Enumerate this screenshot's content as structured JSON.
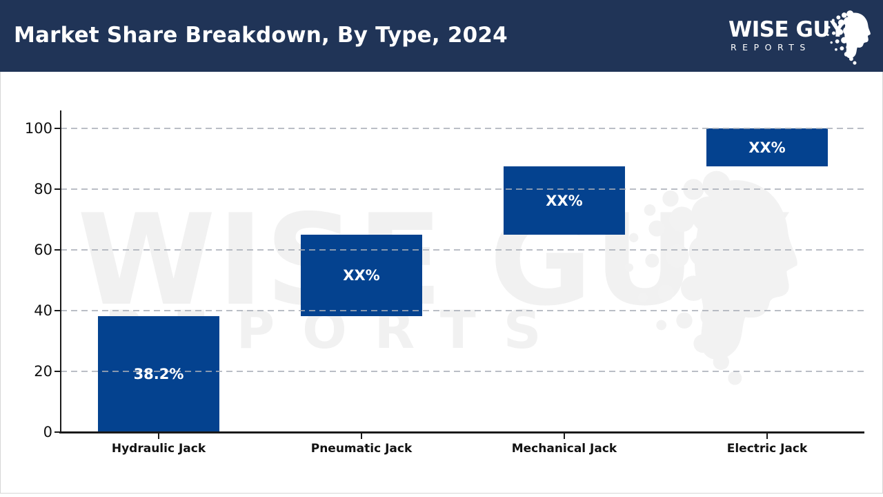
{
  "header": {
    "title": "Market Share Breakdown, By Type, 2024",
    "logo": {
      "line1": "WISE GUY",
      "line2": "REPORTS"
    }
  },
  "watermark": {
    "line1": "WISE GUY",
    "line2": "REPORTS"
  },
  "theme": {
    "header_bg": "#203457",
    "bar_color": "#04428F",
    "bar_label_color": "#FFFFFF",
    "axis_color": "#1A1A1A",
    "gridline_color": "#D9D9D9",
    "watermark_color": "#F1F1F1"
  },
  "chart_data": {
    "type": "bar",
    "subtype": "waterfall-floating-bars",
    "title": "Market Share Breakdown, By Type, 2024",
    "xlabel": "",
    "ylabel": "",
    "categories": [
      "Hydraulic Jack",
      "Pneumatic Jack",
      "Mechanical Jack",
      "Electric Jack"
    ],
    "series": [
      {
        "name": "Market share (%)",
        "segments": [
          {
            "category": "Hydraulic Jack",
            "start": 0,
            "end": 38.2,
            "label": "38.2%"
          },
          {
            "category": "Pneumatic Jack",
            "start": 38.2,
            "end": 65.0,
            "label": "XX%"
          },
          {
            "category": "Mechanical Jack",
            "start": 65.0,
            "end": 87.5,
            "label": "XX%"
          },
          {
            "category": "Electric Jack",
            "start": 87.5,
            "end": 100.0,
            "label": "XX%"
          }
        ]
      }
    ],
    "ylim": [
      0,
      108
    ],
    "yticks": [
      0,
      20,
      40,
      60,
      80,
      100
    ],
    "grid": "horizontal-dashed, drawn over bars",
    "legend": "none"
  }
}
